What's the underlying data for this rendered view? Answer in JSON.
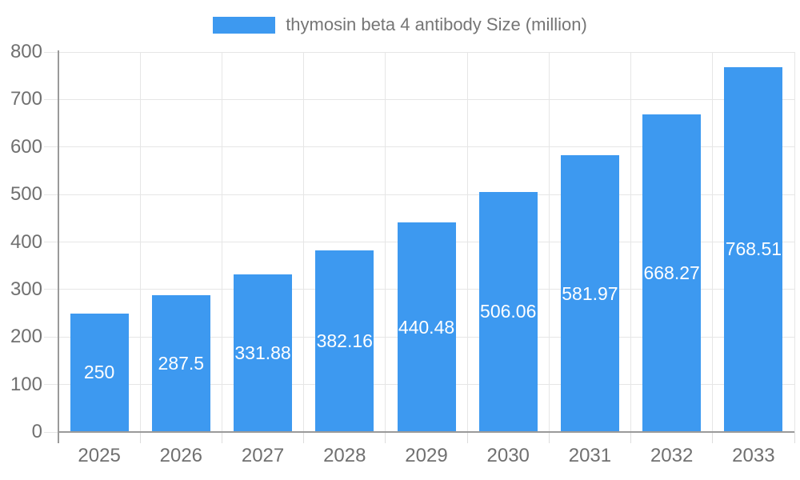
{
  "legend": {
    "label": "thymosin beta 4 antibody Size (million)"
  },
  "chart_data": {
    "type": "bar",
    "title": "thymosin beta 4 antibody Size (million)",
    "categories": [
      "2025",
      "2026",
      "2027",
      "2028",
      "2029",
      "2030",
      "2031",
      "2032",
      "2033"
    ],
    "values": [
      250,
      287.5,
      331.88,
      382.16,
      440.48,
      506.06,
      581.97,
      668.27,
      768.51
    ],
    "value_labels": [
      "250",
      "287.5",
      "331.88",
      "382.16",
      "440.48",
      "506.06",
      "581.97",
      "668.27",
      "768.51"
    ],
    "xlabel": "",
    "ylabel": "",
    "ylim": [
      0,
      800
    ],
    "y_ticks": [
      0,
      100,
      200,
      300,
      400,
      500,
      600,
      700,
      800
    ],
    "grid": true,
    "legend_position": "top-center",
    "colors": {
      "bar": "#3D99F0",
      "grid": "#E6E6E6",
      "tick": "#DDDDDD",
      "axis": "#9A9A9A",
      "axis_text": "#707070",
      "bar_label": "#FFFFFF",
      "legend_text": "#757575",
      "background": "#FFFFFF"
    }
  }
}
